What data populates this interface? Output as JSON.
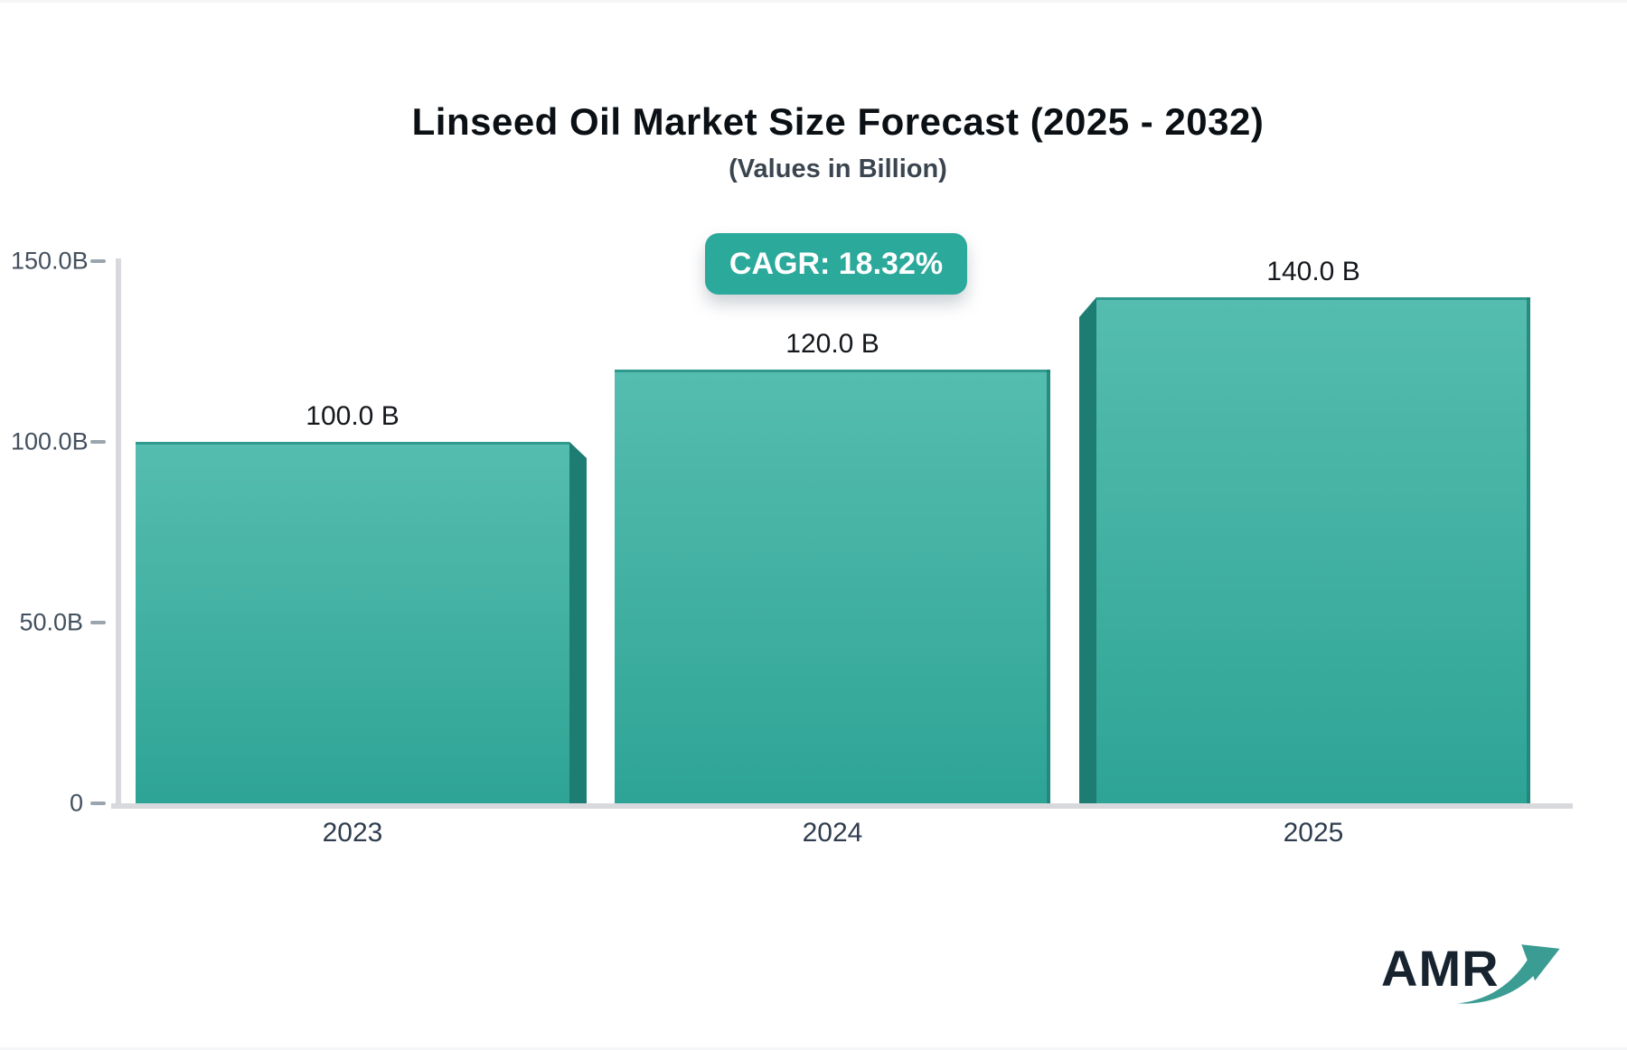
{
  "title": "Linseed Oil Market Size Forecast (2025 - 2032)",
  "subtitle": "(Values in Billion)",
  "badge": {
    "label": "CAGR: 18.32%"
  },
  "logo": {
    "text": "AMR",
    "arrow_icon": "trend-up-arrow"
  },
  "colors": {
    "badge_teal": "#2ba99b",
    "bar_gradient_top": "#55bdaf",
    "bar_gradient_bottom": "#2ea496",
    "bar_side_dark": "#1e7d72",
    "bar_top_line": "#2f9a8d",
    "axis_gray": "#d7d9dd",
    "tick_gray": "#9aa5af",
    "logo_arrow_teal": "#3a9c92"
  },
  "chart_data": {
    "type": "bar",
    "title": "Linseed Oil Market Size Forecast (2025 - 2032)",
    "subtitle": "(Values in Billion)",
    "cagr": "18.32%",
    "categories": [
      "2023",
      "2024",
      "2025"
    ],
    "values": [
      100.0,
      120.0,
      140.0
    ],
    "value_labels": [
      "100.0 B",
      "120.0 B",
      "140.0 B"
    ],
    "unit": "Billion",
    "ylim": [
      0,
      150
    ],
    "y_ticks": [
      {
        "value": 0,
        "label": "0"
      },
      {
        "value": 50,
        "label": "50.0B"
      },
      {
        "value": 100,
        "label": "100.0B"
      },
      {
        "value": 150,
        "label": "150.0B"
      }
    ],
    "grid": false,
    "legend": false
  }
}
